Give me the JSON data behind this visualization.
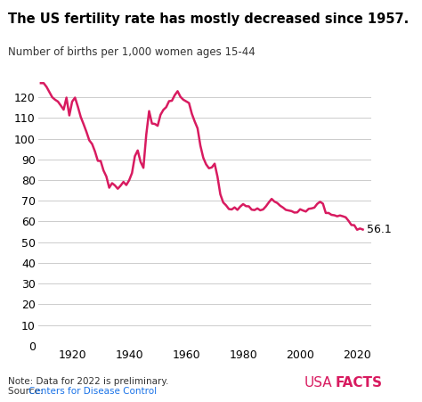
{
  "title": "The US fertility rate has mostly decreased since 1957.",
  "subtitle": "Number of births per 1,000 women ages 15-44",
  "note": "Note: Data for 2022 is preliminary.",
  "source_text": "Source: Centers for Disease Control",
  "source_url": "Centers for Disease Control",
  "usafacts_text": "USAFACTS",
  "line_color": "#D81B60",
  "background_color": "#FFFFFF",
  "grid_color": "#CCCCCC",
  "ylabel_values": [
    0,
    10,
    20,
    30,
    40,
    50,
    60,
    70,
    80,
    90,
    100,
    110,
    120
  ],
  "xlim": [
    1908,
    2025
  ],
  "ylim": [
    0,
    132
  ],
  "end_label": "56.1",
  "years": [
    1909,
    1910,
    1911,
    1912,
    1913,
    1914,
    1915,
    1916,
    1917,
    1918,
    1919,
    1920,
    1921,
    1922,
    1923,
    1924,
    1925,
    1926,
    1927,
    1928,
    1929,
    1930,
    1931,
    1932,
    1933,
    1934,
    1935,
    1936,
    1937,
    1938,
    1939,
    1940,
    1941,
    1942,
    1943,
    1944,
    1945,
    1946,
    1947,
    1948,
    1949,
    1950,
    1951,
    1952,
    1953,
    1954,
    1955,
    1956,
    1957,
    1958,
    1959,
    1960,
    1961,
    1962,
    1963,
    1964,
    1965,
    1966,
    1967,
    1968,
    1969,
    1970,
    1971,
    1972,
    1973,
    1974,
    1975,
    1976,
    1977,
    1978,
    1979,
    1980,
    1981,
    1982,
    1983,
    1984,
    1985,
    1986,
    1987,
    1988,
    1989,
    1990,
    1991,
    1992,
    1993,
    1994,
    1995,
    1996,
    1997,
    1998,
    1999,
    2000,
    2001,
    2002,
    2003,
    2004,
    2005,
    2006,
    2007,
    2008,
    2009,
    2010,
    2011,
    2012,
    2013,
    2014,
    2015,
    2016,
    2017,
    2018,
    2019,
    2020,
    2021,
    2022
  ],
  "values": [
    126.8,
    126.8,
    125.0,
    122.5,
    120.0,
    118.8,
    117.9,
    116.0,
    114.0,
    119.8,
    111.2,
    117.9,
    119.8,
    115.4,
    110.5,
    107.0,
    103.3,
    99.2,
    97.4,
    93.8,
    89.3,
    89.2,
    84.6,
    81.7,
    76.3,
    78.5,
    77.4,
    75.8,
    77.3,
    79.1,
    77.6,
    79.9,
    83.4,
    91.5,
    94.3,
    88.8,
    85.9,
    101.9,
    113.3,
    107.3,
    107.1,
    106.2,
    111.5,
    113.9,
    115.2,
    118.1,
    118.3,
    121.0,
    122.9,
    120.2,
    118.8,
    118.0,
    117.2,
    112.0,
    108.3,
    105.0,
    96.6,
    90.8,
    87.6,
    85.7,
    86.1,
    87.9,
    81.6,
    73.1,
    69.2,
    67.8,
    66.0,
    65.8,
    66.8,
    65.6,
    67.2,
    68.4,
    67.4,
    67.3,
    65.7,
    65.5,
    66.3,
    65.4,
    65.8,
    67.3,
    69.2,
    70.9,
    69.6,
    68.9,
    67.6,
    66.7,
    65.6,
    65.3,
    65.0,
    64.3,
    64.4,
    65.9,
    65.3,
    64.8,
    66.1,
    66.3,
    66.7,
    68.5,
    69.5,
    68.6,
    64.1,
    64.1,
    63.2,
    63.0,
    62.5,
    62.9,
    62.5,
    62.0,
    60.3,
    58.3,
    58.2,
    56.0,
    56.6,
    56.1
  ]
}
